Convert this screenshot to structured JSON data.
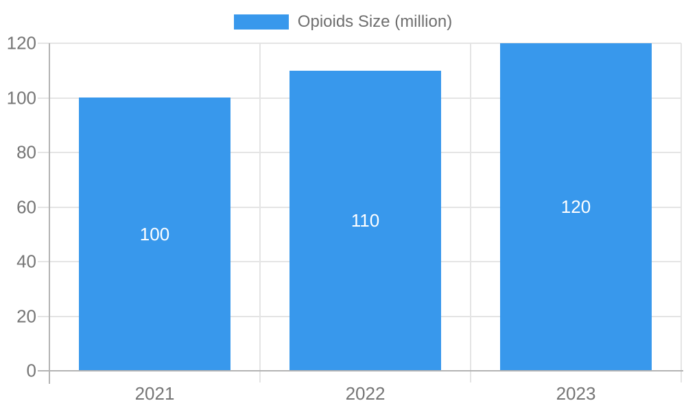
{
  "chart_data": {
    "type": "bar",
    "title": "",
    "legend_entries": [
      "Opioids Size (million)"
    ],
    "legend_position": "top-center",
    "categories": [
      "2021",
      "2022",
      "2023"
    ],
    "series": [
      {
        "name": "Opioids Size (million)",
        "values": [
          100,
          110,
          120
        ]
      }
    ],
    "data_labels": [
      "100",
      "110",
      "120"
    ],
    "xlabel": "",
    "ylabel": "",
    "ylim": [
      0,
      120
    ],
    "yticks": [
      0,
      20,
      40,
      60,
      80,
      100,
      120
    ],
    "grid": true,
    "colors": {
      "bar": "#3898EC",
      "axis_line": "#b3b3b3",
      "gridline": "#e4e4e4",
      "axis_label": "#757575",
      "legend_text": "#6e6e6e",
      "bar_label": "#ffffff",
      "background": "#ffffff"
    }
  }
}
